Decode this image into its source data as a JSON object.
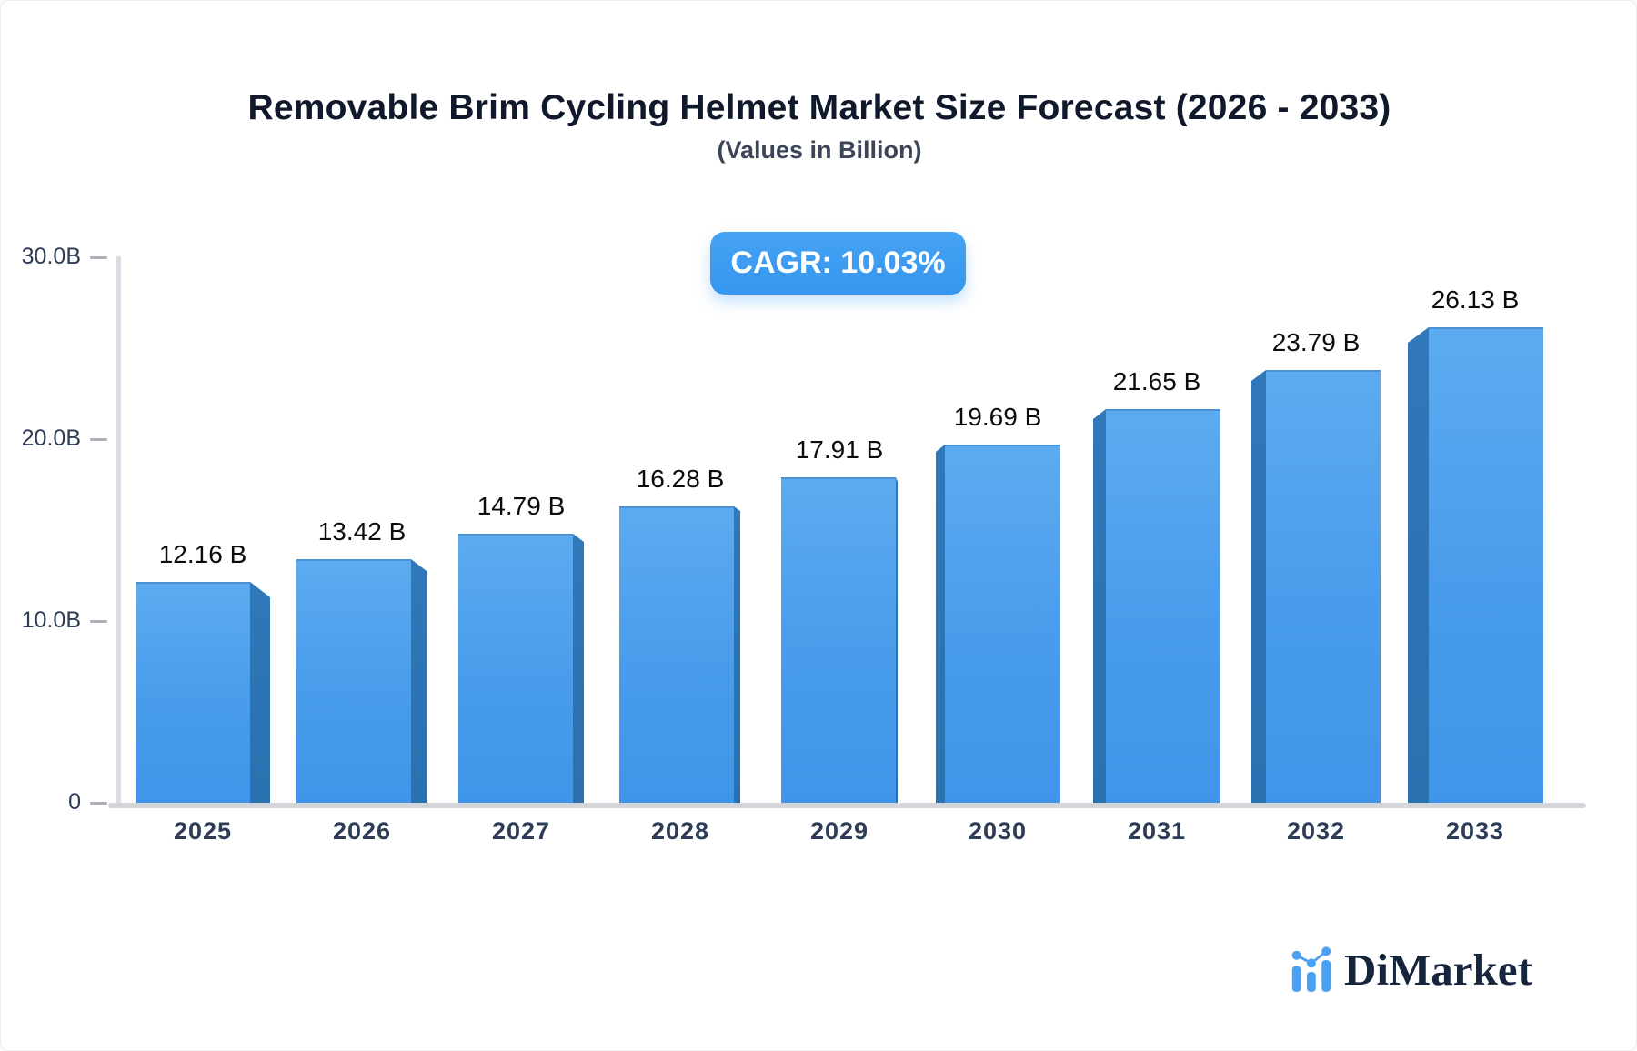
{
  "page": {
    "title": "Removable Brim Cycling Helmet Market Size Forecast (2026 - 2033)",
    "subtitle": "(Values in Billion)",
    "cagr_label": "CAGR: 10.03%",
    "brand": {
      "name": "DiMarket",
      "icon": "dimarket-bars-icon"
    }
  },
  "chart_data": {
    "type": "bar",
    "title": "Removable Brim Cycling Helmet Market Size Forecast (2026 - 2033)",
    "subtitle": "(Values in Billion)",
    "unit": "Billion",
    "cagr": "10.03%",
    "categories": [
      "2025",
      "2026",
      "2027",
      "2028",
      "2029",
      "2030",
      "2031",
      "2032",
      "2033"
    ],
    "values": [
      12.16,
      13.42,
      14.79,
      16.28,
      17.91,
      19.69,
      21.65,
      23.79,
      26.13
    ],
    "data_labels": [
      "12.16 B",
      "13.42 B",
      "14.79 B",
      "16.28 B",
      "17.91 B",
      "19.69 B",
      "21.65 B",
      "23.79 B",
      "26.13 B"
    ],
    "ylim": [
      0,
      30
    ],
    "yticks": [
      {
        "value": 30,
        "label": "30.0B"
      },
      {
        "value": 20,
        "label": "20.0B"
      },
      {
        "value": 10,
        "label": "10.0B"
      },
      {
        "value": 0,
        "label": "0"
      }
    ],
    "grid": false,
    "legend_position": "none",
    "bar_style": "3d",
    "colors": {
      "bar_face": "#55a7ee",
      "bar_side": "#2d76b7",
      "badge": "#3b9cf0",
      "axis_line": "#dcdde2",
      "baseline": "#d3d5d9",
      "value_label_text": "#0c0c0c",
      "axis_text": "#2e3c56",
      "title_text": "#10182b",
      "brand_text": "#16243c",
      "brand_icon": "#4aa0f5"
    }
  }
}
